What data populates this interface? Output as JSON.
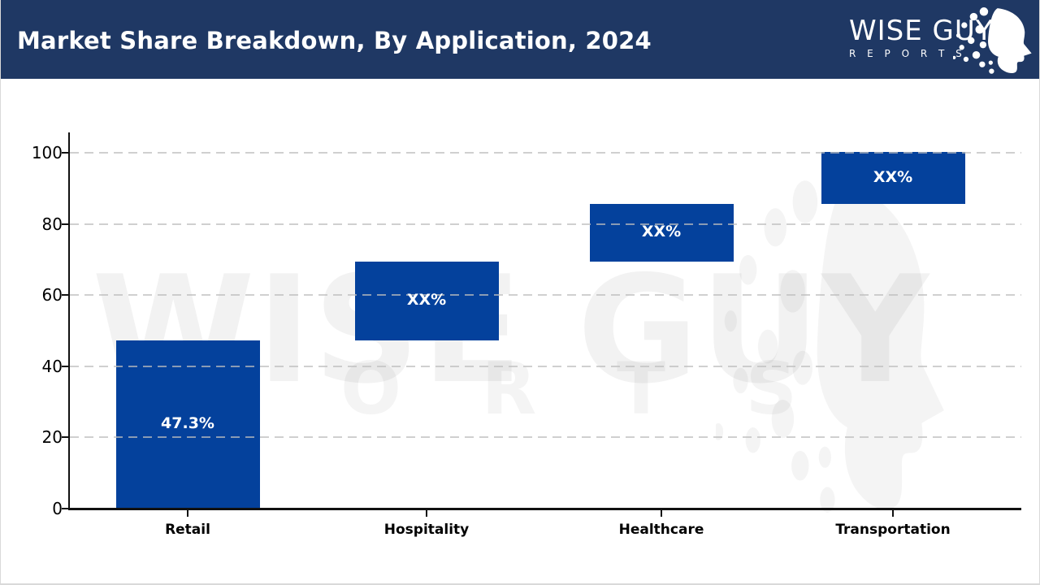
{
  "header": {
    "title": "Market Share Breakdown, By Application, 2024",
    "bg_color": "#1f3864",
    "logo": {
      "name": "Wise Guy Reports",
      "line1": "WISE GUY",
      "line2": "R E P O R T S"
    }
  },
  "watermark": {
    "line1": "WISE GUY",
    "line2": "P O R T S"
  },
  "chart_data": {
    "type": "bar",
    "subtype": "waterfall",
    "title": "Market Share Breakdown, By Application, 2024",
    "categories": [
      "Retail",
      "Hospitality",
      "Healthcare",
      "Transportation"
    ],
    "segments": [
      {
        "category": "Retail",
        "start": 0,
        "end": 47.3,
        "label": "47.3%"
      },
      {
        "category": "Hospitality",
        "start": 47.3,
        "end": 69.5,
        "label": "XX%"
      },
      {
        "category": "Healthcare",
        "start": 69.5,
        "end": 85.6,
        "label": "XX%"
      },
      {
        "category": "Transportation",
        "start": 85.6,
        "end": 100.3,
        "label": "XX%"
      }
    ],
    "xlabel": "",
    "ylabel": "",
    "ylim": [
      0,
      100
    ],
    "yticks": [
      0,
      20,
      40,
      60,
      80,
      100
    ],
    "grid": "horizontal-dashed-over-bars",
    "legend": "none",
    "bar_color": "#04419c",
    "bar_label_color": "#ffffff",
    "axis_color": "#111111",
    "grid_color": "#d9d9d9"
  }
}
